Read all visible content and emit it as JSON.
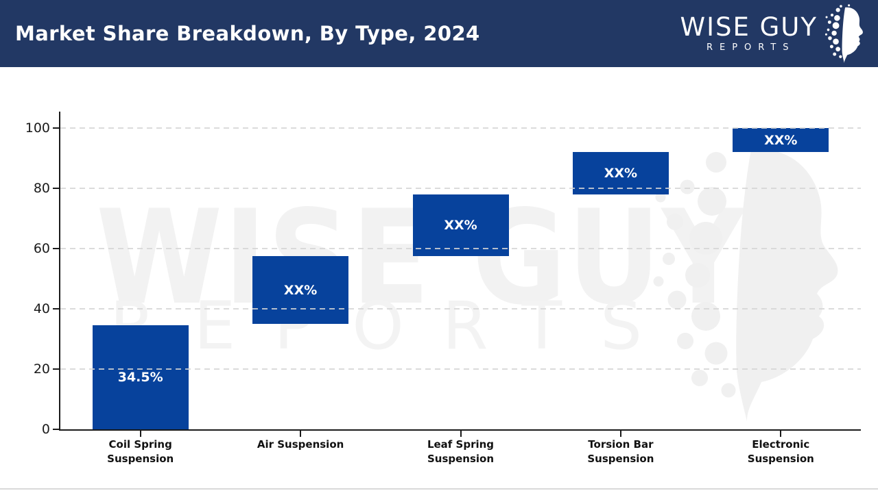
{
  "header": {
    "title": "Market Share Breakdown, By Type, 2024",
    "bg_color": "#223864",
    "logo": {
      "name": "WISE GUY",
      "sub": "REPORTS",
      "icon": "dotted-face-profile-icon"
    }
  },
  "watermark": {
    "name": "WISE GUY",
    "sub": "REPORTS",
    "icon": "dotted-face-profile-icon"
  },
  "chart_data": {
    "type": "bar",
    "variant": "waterfall-cumulative-percentage",
    "title": "Market Share Breakdown, By Type, 2024",
    "categories": [
      "Coil Spring Suspension",
      "Air Suspension",
      "Leaf Spring Suspension",
      "Torsion Bar Suspension",
      "Electronic Suspension"
    ],
    "category_lines": [
      [
        "Coil Spring",
        "Suspension"
      ],
      [
        "Air Suspension"
      ],
      [
        "Leaf Spring",
        "Suspension"
      ],
      [
        "Torsion Bar",
        "Suspension"
      ],
      [
        "Electronic",
        "Suspension"
      ]
    ],
    "segments": [
      {
        "category": "Coil Spring Suspension",
        "start": 0,
        "end": 34.5,
        "label": "34.5%"
      },
      {
        "category": "Air Suspension",
        "start": 35,
        "end": 57.5,
        "label": "XX%"
      },
      {
        "category": "Leaf Spring Suspension",
        "start": 57.5,
        "end": 78,
        "label": "XX%"
      },
      {
        "category": "Torsion Bar Suspension",
        "start": 78,
        "end": 92,
        "label": "XX%"
      },
      {
        "category": "Electronic Suspension",
        "start": 92,
        "end": 100,
        "label": "XX%"
      }
    ],
    "bar_labels": [
      "34.5%",
      "XX%",
      "XX%",
      "XX%",
      "XX%"
    ],
    "values_estimated": [
      34.5,
      22.5,
      20.5,
      14,
      8
    ],
    "xlabel": "",
    "ylabel": "",
    "ylim": [
      0,
      100
    ],
    "yticks": [
      0,
      20,
      40,
      60,
      80,
      100
    ],
    "grid": {
      "horizontal": true,
      "style": "dashed",
      "color": "#d9d9d9",
      "drawn_over_bars": true
    },
    "legend": "none",
    "bar_color": "#07429c",
    "bar_label_color": "#ffffff",
    "axis_color": "#1a1a1a"
  }
}
